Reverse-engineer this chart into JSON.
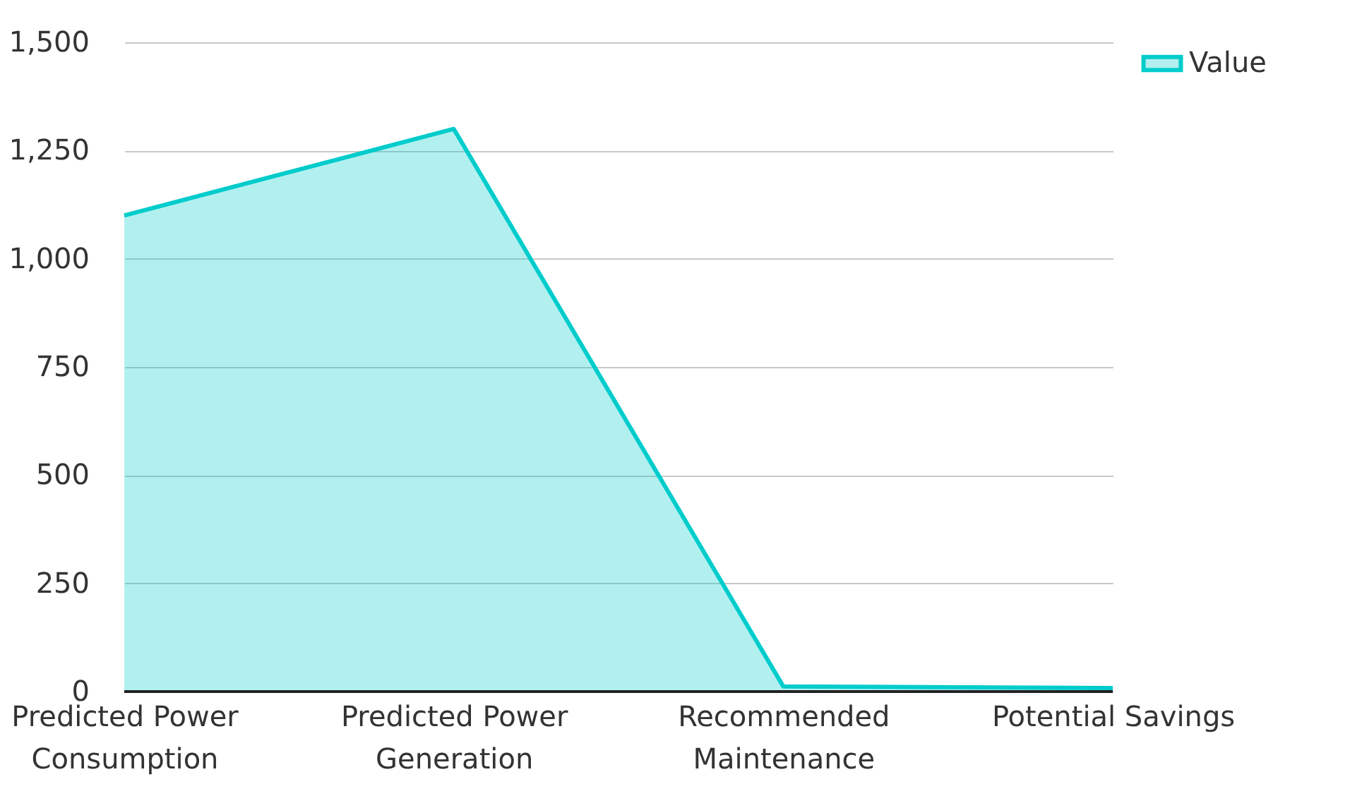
{
  "chart_data": {
    "type": "area",
    "categories": [
      "Predicted Power Consumption",
      "Predicted Power Generation",
      "Recommended Maintenance",
      "Potential Savings"
    ],
    "series": [
      {
        "name": "Value",
        "color": "#00cccc",
        "values": [
          1100,
          1300,
          12,
          8
        ]
      }
    ],
    "ylim": [
      0,
      1500
    ],
    "yticks": [
      0,
      250,
      500,
      750,
      {
        "value": 1000,
        "label": "1,000"
      },
      {
        "value": 1250,
        "label": "1,250"
      },
      {
        "value": 1500,
        "label": "1,500"
      }
    ],
    "grid": "y",
    "legend": "top right"
  }
}
